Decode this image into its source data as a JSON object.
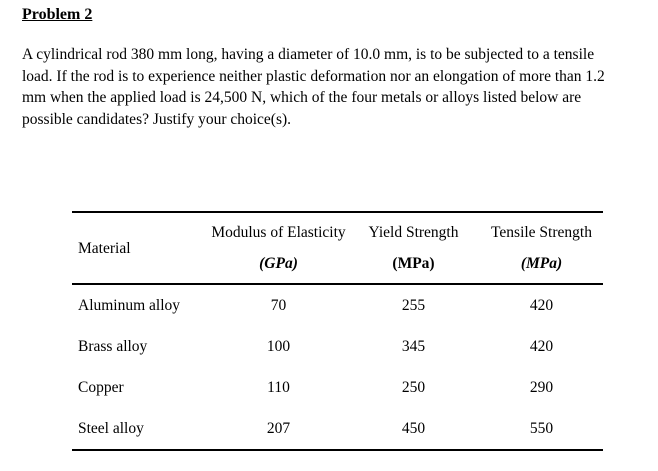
{
  "page": {
    "title": "Problem 2",
    "paragraph_lines": [
      "A cylindrical rod 380 mm long, having a diameter of 10.0 mm, is to be subjected to a tensile",
      "load. If the rod is to experience neither plastic deformation nor an elongation of more than 1.2",
      "mm when the applied load is 24,500 N, which of the four metals or alloys listed below are",
      "possible candidates? Justify your choice(s)."
    ]
  },
  "table": {
    "columns": [
      {
        "label": "Material",
        "unit": ""
      },
      {
        "label": "Modulus of Elasticity",
        "unit": "(GPa)"
      },
      {
        "label": "Yield Strength",
        "unit": "(MPa)"
      },
      {
        "label": "Tensile Strength",
        "unit": "(MPa)"
      }
    ],
    "rows": [
      {
        "material": "Aluminum alloy",
        "modulus_gpa": "70",
        "yield_mpa": "255",
        "tensile_mpa": "420"
      },
      {
        "material": "Brass alloy",
        "modulus_gpa": "100",
        "yield_mpa": "345",
        "tensile_mpa": "420"
      },
      {
        "material": "Copper",
        "modulus_gpa": "110",
        "yield_mpa": "250",
        "tensile_mpa": "290"
      },
      {
        "material": "Steel alloy",
        "modulus_gpa": "207",
        "yield_mpa": "450",
        "tensile_mpa": "550"
      }
    ]
  }
}
